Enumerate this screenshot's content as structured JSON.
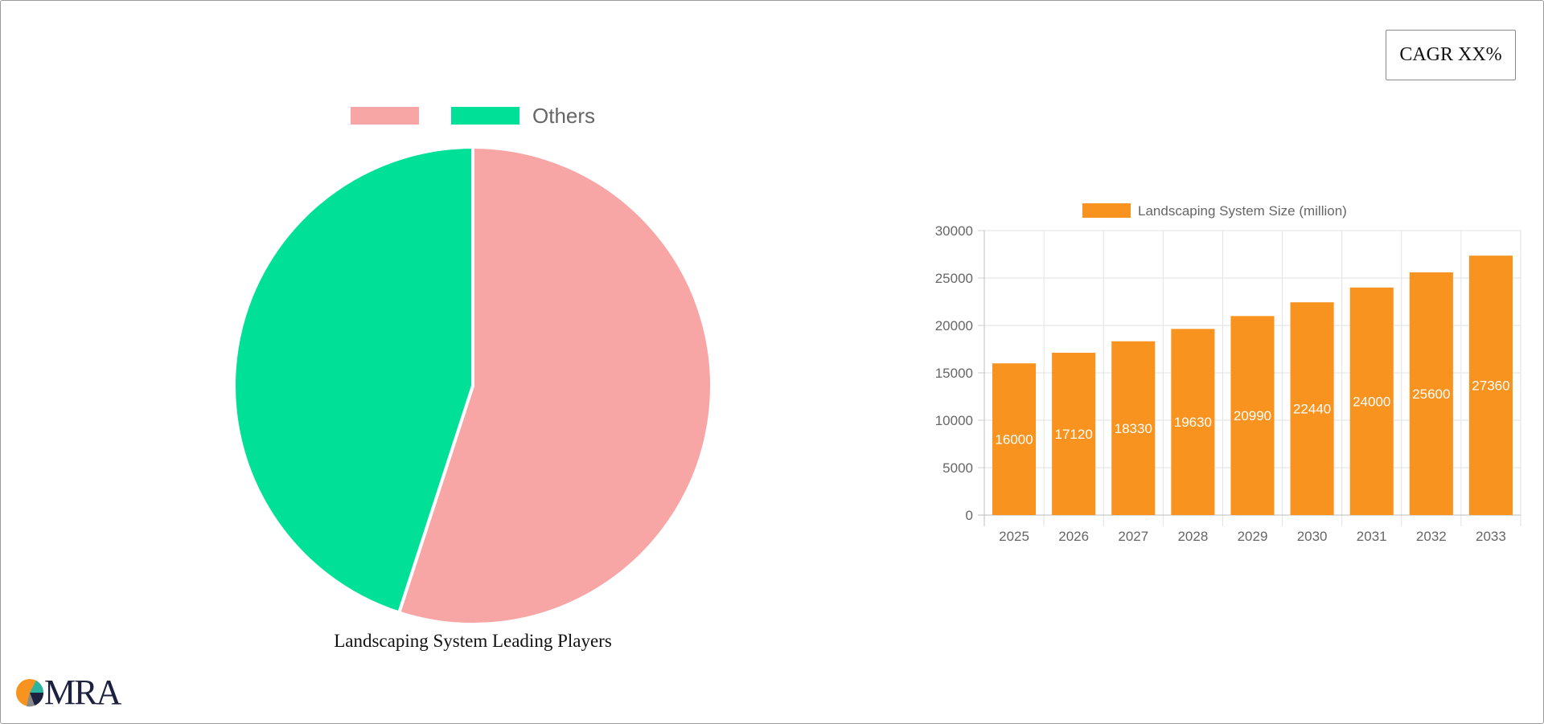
{
  "cagr_label": "CAGR XX%",
  "logo_text": "MRA",
  "colors": {
    "pie_player": "#f8a5a5",
    "pie_others": "#00e096",
    "bar": "#f7931e",
    "grid": "#e2e2e2",
    "axis_text": "#666666",
    "logo_orange": "#f7931e",
    "logo_dark": "#1d2140",
    "logo_teal": "#2bb5a0"
  },
  "chart_data": [
    {
      "type": "pie",
      "title": "Landscaping System Leading Players",
      "legend": [
        "",
        "Others"
      ],
      "legend_position": "top",
      "slices": [
        {
          "label": "",
          "value": 55
        },
        {
          "label": "Others",
          "value": 45
        }
      ]
    },
    {
      "type": "bar",
      "categories": [
        "2025",
        "2026",
        "2027",
        "2028",
        "2029",
        "2030",
        "2031",
        "2032",
        "2033"
      ],
      "series": [
        {
          "name": "Landscaping System Size (million)",
          "values": [
            16000,
            17120,
            18330,
            19630,
            20990,
            22440,
            24000,
            25600,
            27360
          ]
        }
      ],
      "ylim": [
        0,
        30000
      ],
      "yticks": [
        0,
        5000,
        10000,
        15000,
        20000,
        25000,
        30000
      ],
      "grid": true,
      "legend_position": "top",
      "data_labels": true
    }
  ]
}
